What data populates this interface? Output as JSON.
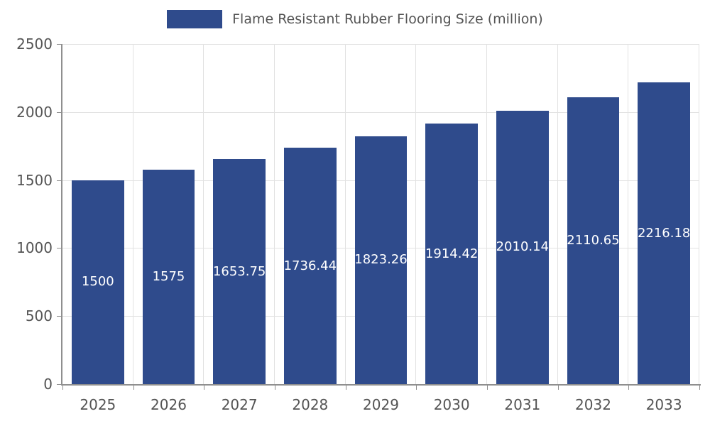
{
  "legend": {
    "label": "Flame Resistant Rubber Flooring Size (million)"
  },
  "chart_data": {
    "type": "bar",
    "title": "Flame Resistant Rubber Flooring Size (million)",
    "categories": [
      "2025",
      "2026",
      "2027",
      "2028",
      "2029",
      "2030",
      "2031",
      "2032",
      "2033"
    ],
    "values": [
      1500,
      1575,
      1653.75,
      1736.44,
      1823.26,
      1914.42,
      2010.14,
      2110.65,
      2216.18
    ],
    "value_labels": [
      "1500",
      "1575",
      "1653.75",
      "1736.44",
      "1823.26",
      "1914.42",
      "2010.14",
      "2110.65",
      "2216.18"
    ],
    "xlabel": "",
    "ylabel": "",
    "ylim": [
      0,
      2500
    ],
    "yticks": [
      0,
      500,
      1000,
      1500,
      2000,
      2500
    ],
    "grid": true,
    "legend_position": "top-center",
    "colors": {
      "bar": "#2f4b8c",
      "grid": "#e2e2e2",
      "axis": "#8f8f8f",
      "tick_text": "#545454",
      "value_label_text": "#ffffff"
    }
  }
}
